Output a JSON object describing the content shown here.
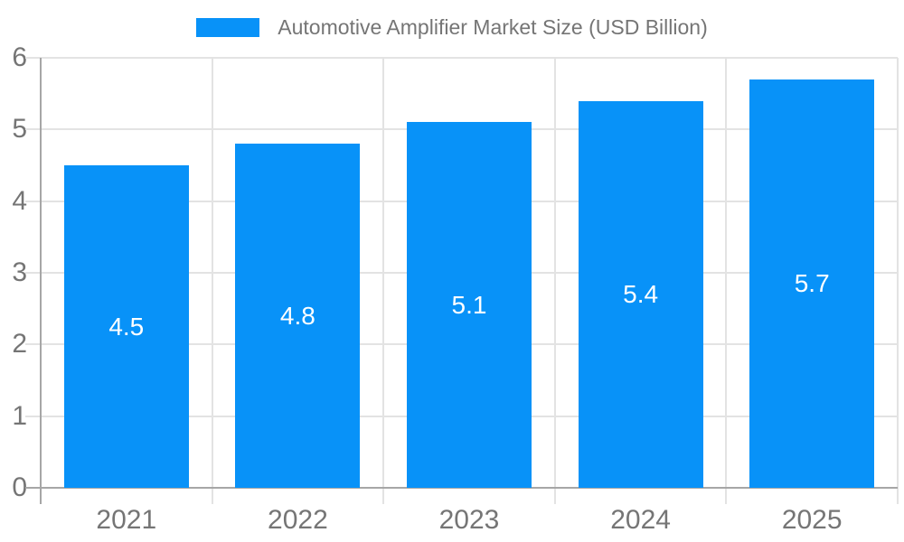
{
  "chart_data": {
    "type": "bar",
    "title": "Automotive Amplifier Market Size (USD Billion)",
    "legend": {
      "label": "Automotive Amplifier Market Size (USD Billion)",
      "position": "top-center"
    },
    "categories": [
      "2021",
      "2022",
      "2023",
      "2024",
      "2025"
    ],
    "values": [
      4.5,
      4.8,
      5.1,
      5.4,
      5.7
    ],
    "data_labels": [
      "4.5",
      "4.8",
      "5.1",
      "5.4",
      "5.7"
    ],
    "xlabel": "",
    "ylabel": "",
    "ylim": [
      0,
      6
    ],
    "yticks": [
      0,
      1,
      2,
      3,
      4,
      5,
      6
    ],
    "grid": true,
    "colors": {
      "bar": "#0892F8",
      "gridline": "#E3E3E3",
      "axis": "#A6A6A6",
      "tick_label": "#757575",
      "data_label": "#FFFFFF",
      "legend_text": "#757575"
    }
  }
}
